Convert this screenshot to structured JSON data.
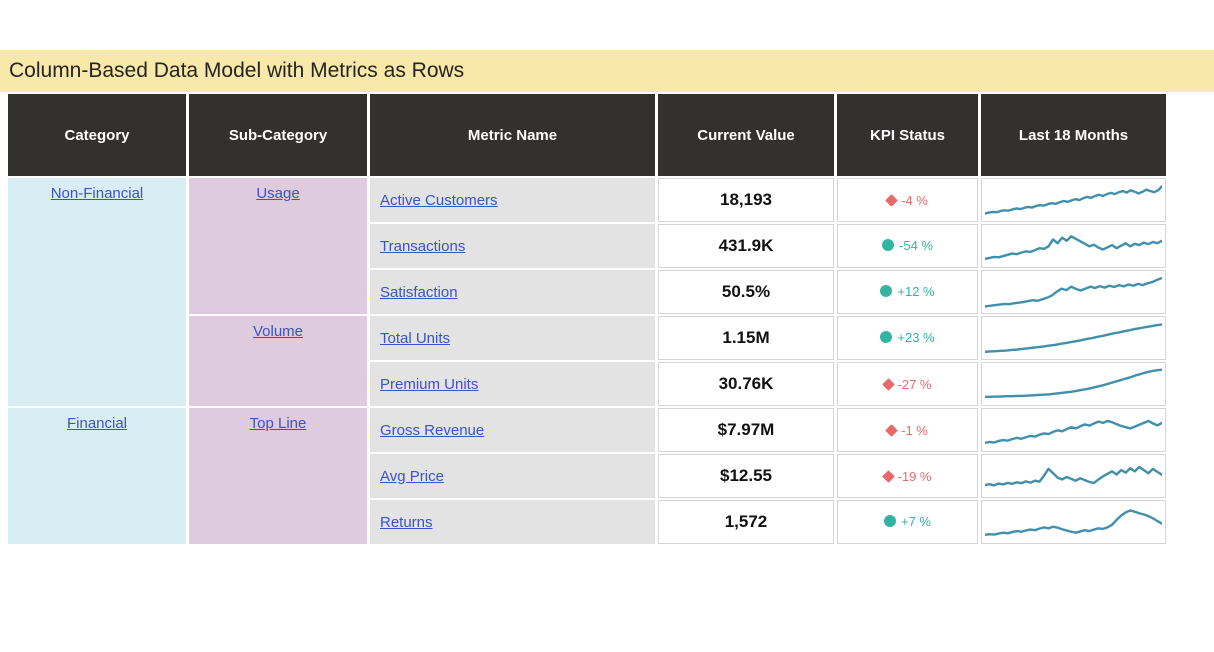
{
  "title": "Column-Based Data Model with Metrics as Rows",
  "colors": {
    "title_background": "#F8E8AA",
    "title_text": "#252423",
    "header_background": "#323130",
    "header_text": "#FFFFFF",
    "category_background": "#D9EDF4",
    "subcategory_background": "#DECBDD",
    "metric_background": "#E3E3E3",
    "link_text": "#3A53C5",
    "value_text": "#111111",
    "kpi_negative": "#E8696B",
    "kpi_positive": "#35B3A1",
    "sparkline": "#4190AB",
    "cell_border": "#D5D5D5"
  },
  "chart_data": {
    "type": "table",
    "title": "Column-Based Data Model with Metrics as Rows",
    "columns": [
      "Category",
      "Sub-Category",
      "Metric Name",
      "Current Value",
      "KPI Status",
      "Last 18 Months"
    ],
    "rows": [
      {
        "category": "Non-Financial",
        "category_rowspan": 5,
        "subcategory": "Usage",
        "subcategory_rowspan": 3,
        "metric": "Active Customers",
        "value": "18,193",
        "kpi_icon": "diamond",
        "kpi_state": "negative",
        "kpi_label": "-4 %"
      },
      {
        "metric": "Transactions",
        "value": "431.9K",
        "kpi_icon": "circle",
        "kpi_state": "positive",
        "kpi_label": "-54 %"
      },
      {
        "metric": "Satisfaction",
        "value": "50.5%",
        "kpi_icon": "circle",
        "kpi_state": "positive",
        "kpi_label": "+12 %"
      },
      {
        "subcategory": "Volume",
        "subcategory_rowspan": 2,
        "metric": "Total Units",
        "value": "1.15M",
        "kpi_icon": "circle",
        "kpi_state": "positive",
        "kpi_label": "+23 %"
      },
      {
        "metric": "Premium Units",
        "value": "30.76K",
        "kpi_icon": "diamond",
        "kpi_state": "negative",
        "kpi_label": "-27 %"
      },
      {
        "category": "Financial",
        "category_rowspan": 3,
        "subcategory": "Top Line",
        "subcategory_rowspan": 3,
        "metric": "Gross Revenue",
        "value": "$7.97M",
        "kpi_icon": "diamond",
        "kpi_state": "negative",
        "kpi_label": "-1 %"
      },
      {
        "metric": "Avg Price",
        "value": "$12.55",
        "kpi_icon": "diamond",
        "kpi_state": "negative",
        "kpi_label": "-19 %"
      },
      {
        "metric": "Returns",
        "value": "1,572",
        "kpi_icon": "circle",
        "kpi_state": "positive",
        "kpi_label": "+7 %"
      }
    ],
    "sparklines": {
      "x_label": "Last 18 Months",
      "y_scale": "normalized 0-100, higher = higher plotted value",
      "series": [
        {
          "name": "Active Customers",
          "values": [
            8,
            11,
            13,
            12,
            16,
            18,
            17,
            21,
            24,
            22,
            26,
            29,
            27,
            32,
            35,
            33,
            38,
            41,
            39,
            44,
            48,
            45,
            50,
            54,
            51,
            57,
            61,
            58,
            64,
            68,
            64,
            70,
            74,
            70,
            76,
            80,
            75,
            82,
            78,
            72,
            77,
            84,
            80,
            76,
            82,
            95
          ]
        },
        {
          "name": "Transactions",
          "values": [
            10,
            13,
            16,
            15,
            19,
            23,
            27,
            25,
            30,
            34,
            32,
            38,
            44,
            42,
            50,
            72,
            60,
            78,
            68,
            82,
            74,
            66,
            58,
            50,
            55,
            46,
            40,
            47,
            54,
            44,
            52,
            60,
            50,
            58,
            54,
            62,
            57,
            64,
            60,
            68
          ]
        },
        {
          "name": "Satisfaction",
          "values": [
            5,
            7,
            9,
            11,
            13,
            12,
            15,
            17,
            19,
            22,
            25,
            23,
            28,
            33,
            40,
            52,
            62,
            57,
            68,
            61,
            56,
            62,
            68,
            64,
            70,
            65,
            71,
            67,
            73,
            69,
            75,
            71,
            77,
            73,
            79,
            83,
            90,
            96
          ]
        },
        {
          "name": "Total Units",
          "values": [
            7,
            8,
            9,
            10,
            11,
            13,
            14,
            16,
            18,
            20,
            22,
            24,
            27,
            29,
            32,
            35,
            38,
            41,
            44,
            48,
            51,
            55,
            58,
            62,
            66,
            69,
            73,
            76,
            80,
            83,
            86,
            89,
            92,
            94
          ]
        },
        {
          "name": "Premium Units",
          "values": [
            10,
            10,
            11,
            11,
            12,
            12,
            13,
            13,
            14,
            15,
            16,
            17,
            18,
            20,
            22,
            24,
            26,
            29,
            32,
            35,
            39,
            43,
            47,
            52,
            57,
            62,
            67,
            72,
            78,
            83,
            88,
            92,
            95,
            97
          ]
        },
        {
          "name": "Gross Revenue",
          "values": [
            10,
            13,
            11,
            16,
            19,
            17,
            22,
            26,
            23,
            28,
            32,
            30,
            36,
            40,
            38,
            45,
            50,
            47,
            54,
            60,
            56,
            63,
            69,
            65,
            72,
            78,
            74,
            80,
            76,
            70,
            64,
            60,
            56,
            62,
            68,
            74,
            80,
            72,
            66,
            74
          ]
        },
        {
          "name": "Avg Price",
          "values": [
            22,
            25,
            21,
            27,
            24,
            29,
            26,
            31,
            28,
            34,
            30,
            36,
            33,
            52,
            74,
            60,
            46,
            40,
            48,
            42,
            36,
            44,
            38,
            32,
            29,
            40,
            50,
            58,
            66,
            56,
            70,
            62,
            76,
            66,
            80,
            70,
            60,
            74,
            64,
            55
          ]
        },
        {
          "name": "Returns",
          "values": [
            10,
            12,
            11,
            14,
            17,
            15,
            19,
            22,
            20,
            24,
            27,
            25,
            30,
            34,
            31,
            36,
            33,
            28,
            24,
            20,
            17,
            21,
            25,
            22,
            27,
            31,
            29,
            34,
            42,
            58,
            72,
            82,
            88,
            84,
            79,
            75,
            70,
            63,
            54,
            46
          ]
        }
      ]
    }
  }
}
